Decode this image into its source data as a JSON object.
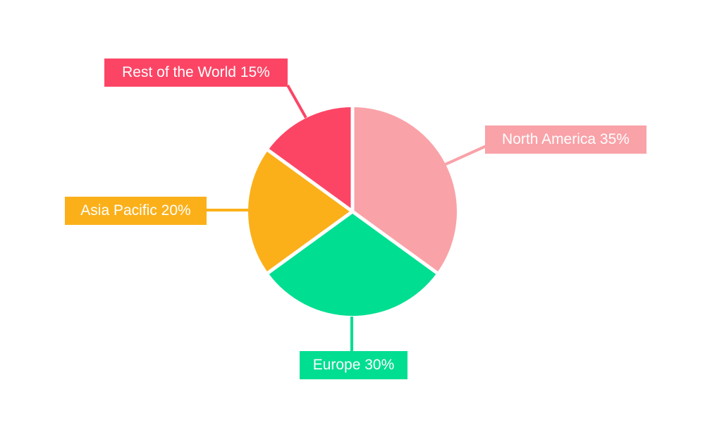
{
  "chart_data": {
    "type": "pie",
    "title": "",
    "background_color": "#FFFFFF",
    "label_text_color": "#FFFFFF",
    "separator_color": "#FFFFFF",
    "start_angle_deg": 0,
    "direction": "clockwise",
    "legend_position": "callout-labels",
    "categories": [
      "North America",
      "Europe",
      "Asia Pacific",
      "Rest of the World"
    ],
    "values": [
      35,
      30,
      20,
      15
    ],
    "slices": [
      {
        "label": "North America",
        "value": 35,
        "display": "North America 35%",
        "color": "#F9A2A8"
      },
      {
        "label": "Europe",
        "value": 30,
        "display": "Europe 30%",
        "color": "#00DE91"
      },
      {
        "label": "Asia Pacific",
        "value": 20,
        "display": "Asia Pacific 20%",
        "color": "#FBB01A"
      },
      {
        "label": "Rest of the World",
        "value": 15,
        "display": "Rest of the World 15%",
        "color": "#FC4565"
      }
    ]
  }
}
